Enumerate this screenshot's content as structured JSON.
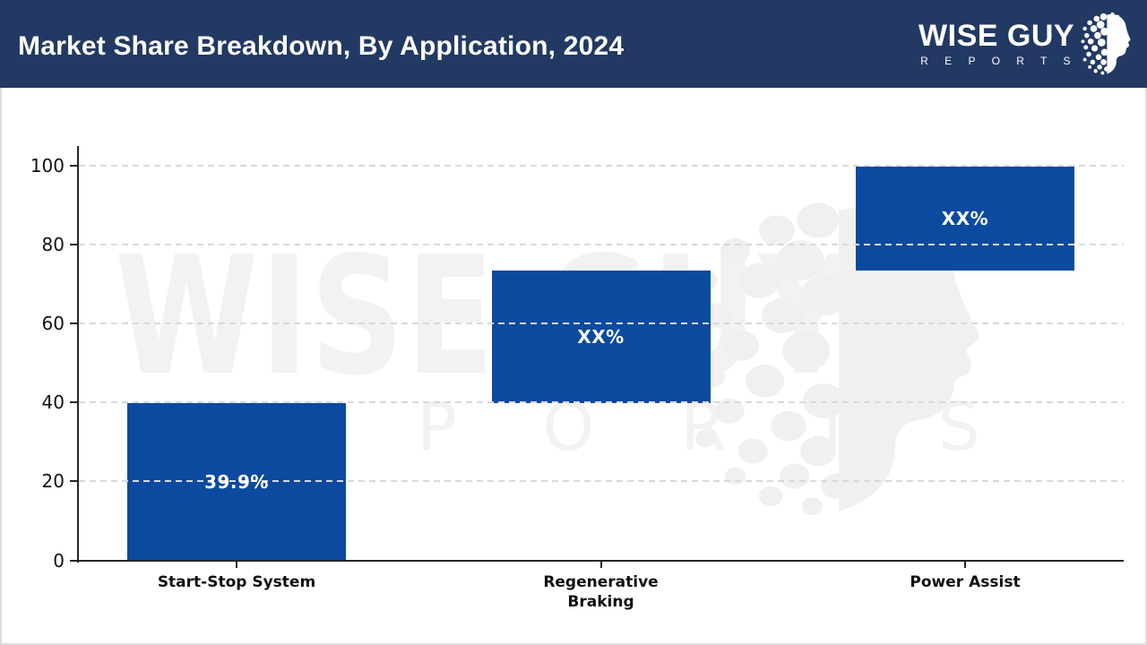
{
  "colors": {
    "header_bg": "#213963",
    "bar": "#0b4a9f",
    "grid": "#d9d9d9",
    "axis": "#262626",
    "bar_label": "#ffffff",
    "watermark": "#f2f2f2"
  },
  "header": {
    "title": "Market Share Breakdown, By Application, 2024",
    "logo": {
      "line1": "WISE GUY",
      "line2": "R E P O R T S"
    }
  },
  "watermark": {
    "line1": "WISE GUY",
    "line2": "R E P O R T S"
  },
  "chart_data": {
    "type": "bar",
    "variant": "floating-waterfall",
    "title": "Market Share Breakdown, By Application, 2024",
    "categories": [
      "Start-Stop System",
      "Regenerative Braking",
      "Power Assist"
    ],
    "category_lines": [
      [
        "Start-Stop System"
      ],
      [
        "Regenerative",
        "Braking"
      ],
      [
        "Power Assist"
      ]
    ],
    "bars": [
      {
        "category": "Start-Stop System",
        "from": 0,
        "to": 39.9,
        "label": "39.9%"
      },
      {
        "category": "Regenerative Braking",
        "from": 39.9,
        "to": 73.5,
        "label": "XX%"
      },
      {
        "category": "Power Assist",
        "from": 73.5,
        "to": 99.7,
        "label": "XX%"
      }
    ],
    "xlabel": "",
    "ylabel": "",
    "yticks": [
      0,
      20,
      40,
      60,
      80,
      100
    ],
    "ylim": [
      0,
      105
    ],
    "grid": "horizontal-dashed",
    "legend": "none"
  }
}
